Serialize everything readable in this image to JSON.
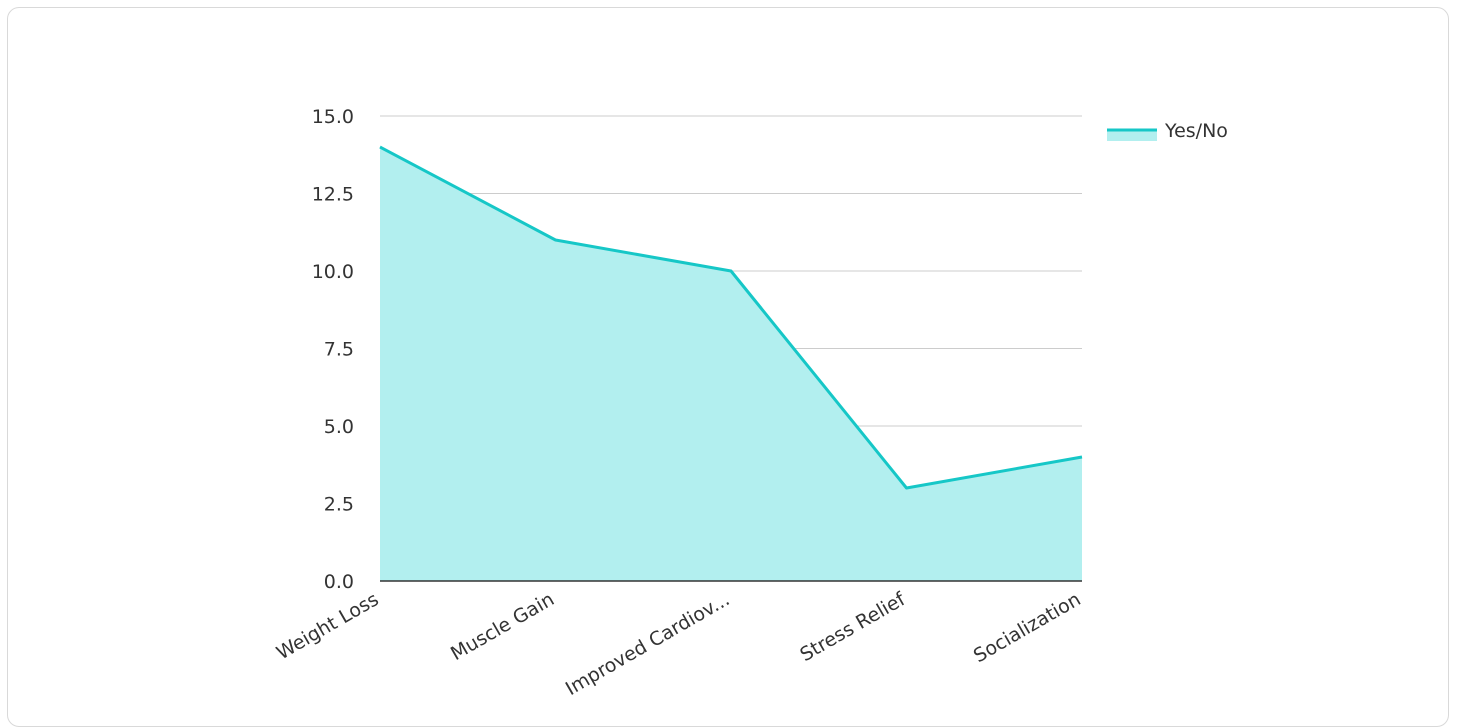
{
  "chart_data": {
    "type": "area",
    "categories": [
      "Weight Loss",
      "Muscle Gain",
      "Improved Cardiov...",
      "Stress Relief",
      "Socialization"
    ],
    "series": [
      {
        "name": "Yes/No",
        "values": [
          14,
          11,
          10,
          3,
          4
        ]
      }
    ],
    "ylim": [
      0,
      15
    ],
    "yticks": [
      "0.0",
      "2.5",
      "5.0",
      "7.5",
      "10.0",
      "12.5",
      "15.0"
    ],
    "grid": true,
    "legend_position": "top-right",
    "colors": {
      "line": "#16c7c7",
      "fill": "#b2efef",
      "grid": "#cccccc",
      "axis": "#333333"
    }
  }
}
